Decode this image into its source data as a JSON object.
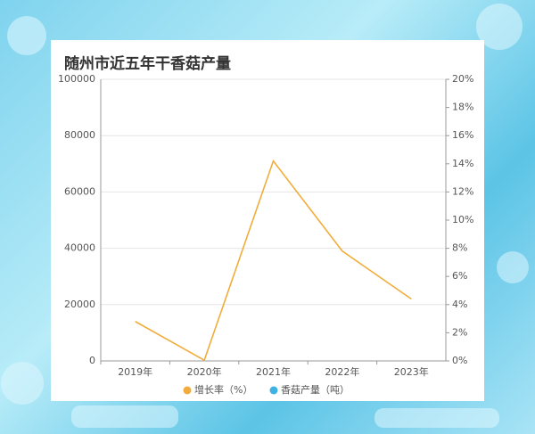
{
  "chart_data": {
    "type": "line",
    "title": "随州市近五年干香菇产量",
    "categories": [
      "2019年",
      "2020年",
      "2021年",
      "2022年",
      "2023年"
    ],
    "series": [
      {
        "name": "增长率（%）",
        "color": "#f0ad3c",
        "axis": "y2",
        "values": [
          2.8,
          0.05,
          14.2,
          7.8,
          4.4
        ]
      },
      {
        "name": "香菇产量（吨）",
        "color": "#3fb1e3",
        "values": [
          null,
          null,
          null,
          null,
          null
        ]
      }
    ],
    "ylim": [
      0,
      100000
    ],
    "yticks": [
      0,
      20000,
      40000,
      60000,
      80000,
      100000
    ],
    "y2lim": [
      0,
      20
    ],
    "y2ticks": [
      {
        "value": 0,
        "label": "0%"
      },
      {
        "value": 2,
        "label": "2%"
      },
      {
        "value": 4,
        "label": "4%"
      },
      {
        "value": 6,
        "label": "6%"
      },
      {
        "value": 8,
        "label": "8%"
      },
      {
        "value": 10,
        "label": "10%"
      },
      {
        "value": 12,
        "label": "12%"
      },
      {
        "value": 14,
        "label": "14%"
      },
      {
        "value": 16,
        "label": "16%"
      },
      {
        "value": 18,
        "label": "18%"
      },
      {
        "value": 20,
        "label": "20%"
      }
    ],
    "grid": true
  }
}
